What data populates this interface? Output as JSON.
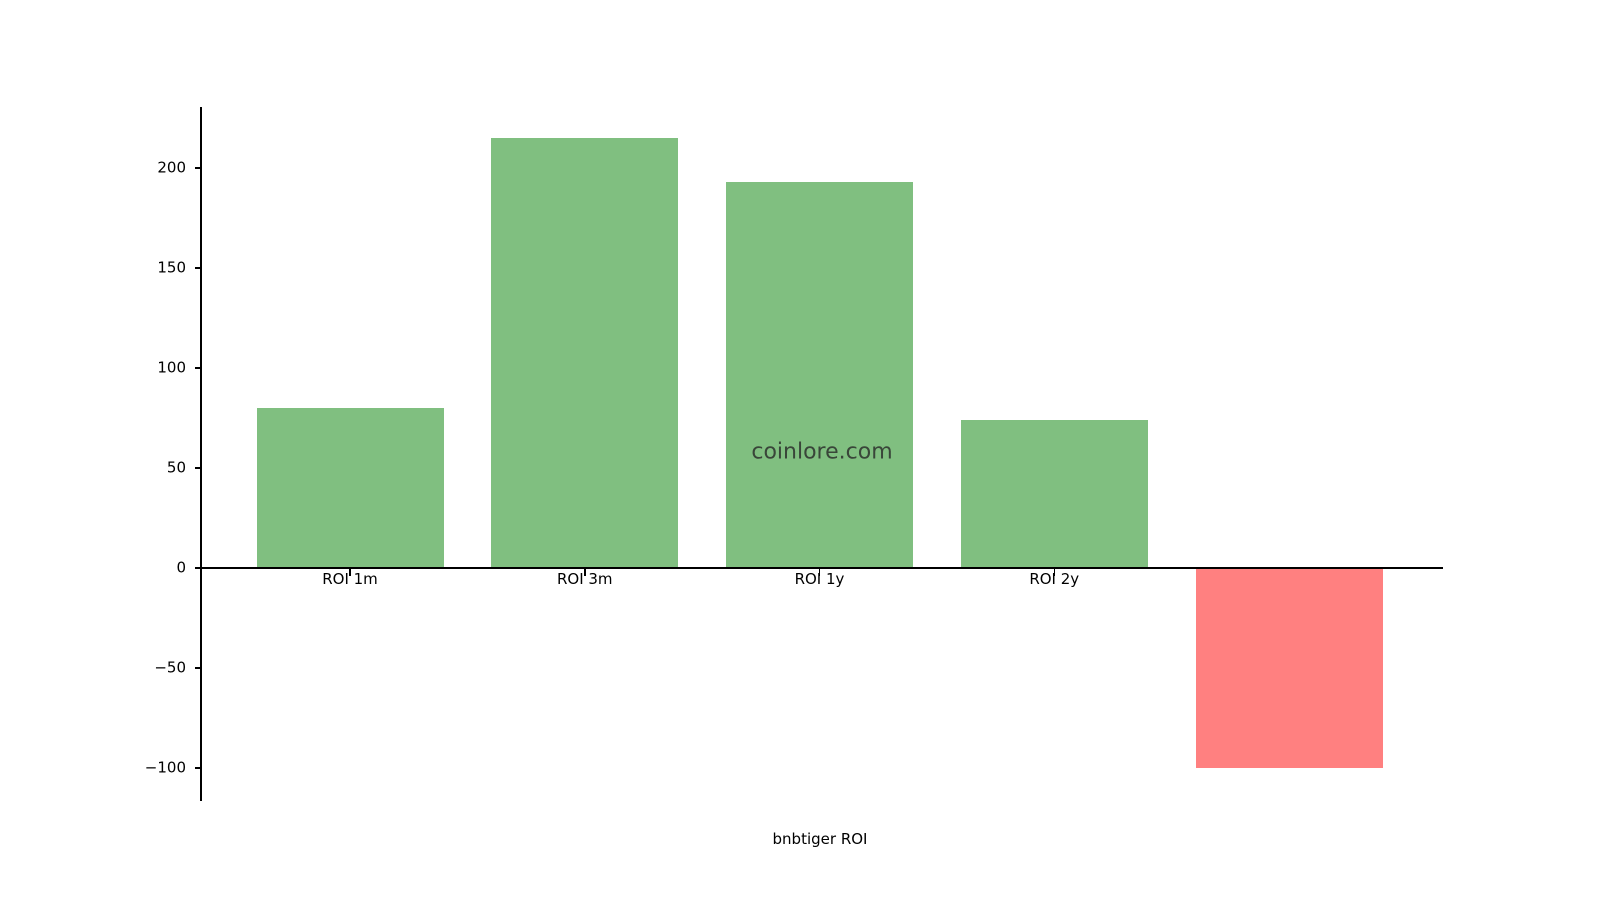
{
  "watermark": {
    "text": "coinlore.com"
  },
  "colors": {
    "positive_bar": "#80bf80",
    "negative_bar": "#ff8080",
    "axis_line": "#000000",
    "tick_text": "#000000",
    "watermark_text": "#2d302d"
  },
  "chart_data": {
    "type": "bar",
    "title": "",
    "xlabel": "bnbtiger ROI",
    "ylabel": "",
    "categories": [
      "ROI 1m",
      "ROI 3m",
      "ROI 1y",
      "ROI 2y",
      ""
    ],
    "values": [
      80,
      215,
      193,
      74,
      -100
    ],
    "bar_colors": [
      "#80bf80",
      "#80bf80",
      "#80bf80",
      "#80bf80",
      "#ff8080"
    ],
    "ylim": [
      -116,
      230
    ],
    "yticks": [
      200,
      150,
      100,
      50,
      0,
      -50,
      -100
    ],
    "ytick_labels": [
      "200",
      "150",
      "100",
      "50",
      "0",
      "−50",
      "−100"
    ],
    "grid": false,
    "legend": "none",
    "annotations": [
      "coinlore.com"
    ]
  }
}
